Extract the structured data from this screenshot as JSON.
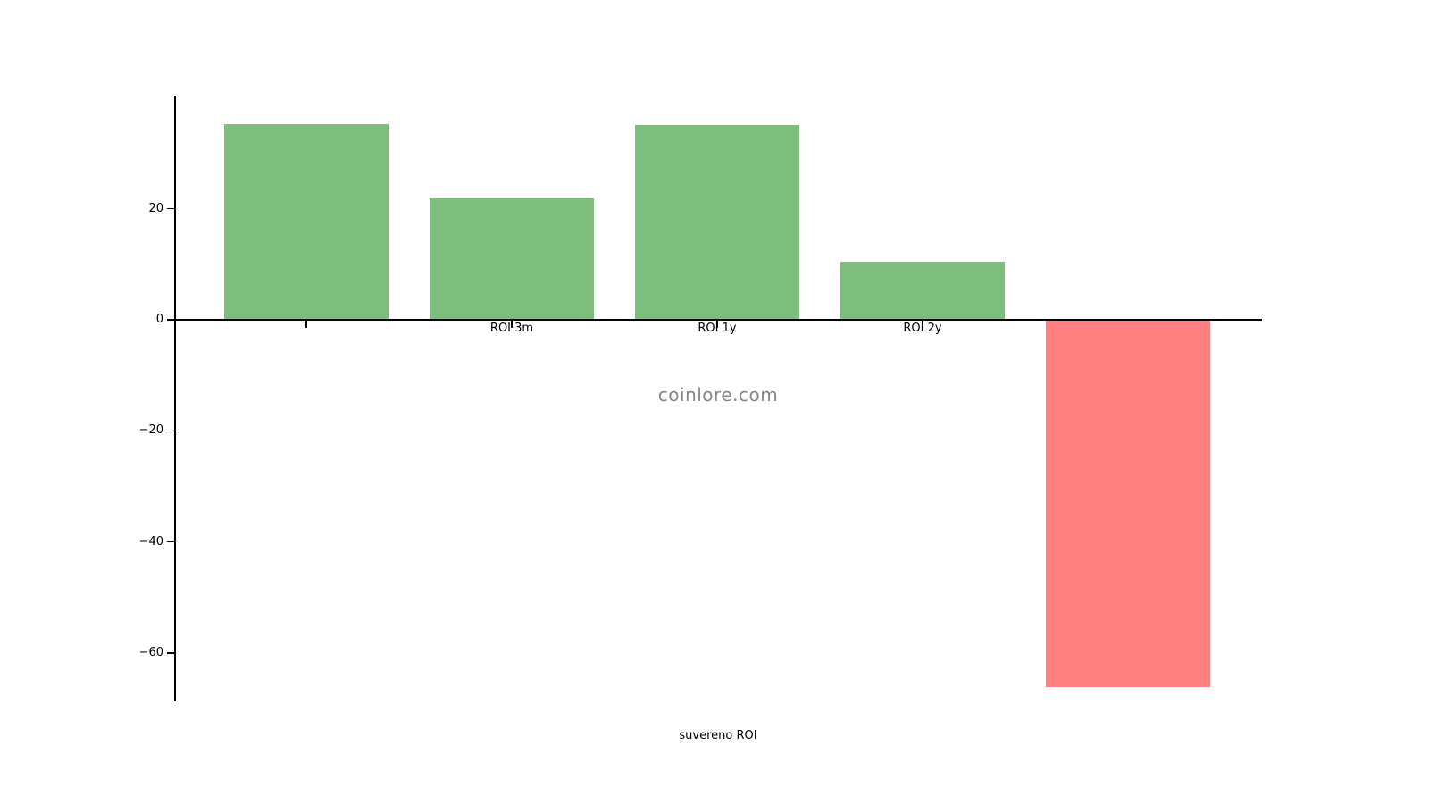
{
  "chart_data": {
    "type": "bar",
    "title": "suvereno ROI",
    "watermark": "coinlore.com",
    "categories": [
      "",
      "ROI 3m",
      "ROI 1y",
      "ROI 2y",
      ""
    ],
    "values": [
      35.2,
      21.8,
      35.1,
      10.5,
      -65.9
    ],
    "xlabel": "",
    "ylabel": "",
    "ylim": [
      -70,
      40
    ],
    "yticks": [
      20,
      0,
      -20,
      -40,
      -60
    ],
    "grid": false,
    "legend": null,
    "positive_color": "#7dbd7d",
    "negative_color": "#ff8080",
    "axis_color": "#000000",
    "watermark_color": "#868686",
    "background_color": "#ffffff"
  }
}
